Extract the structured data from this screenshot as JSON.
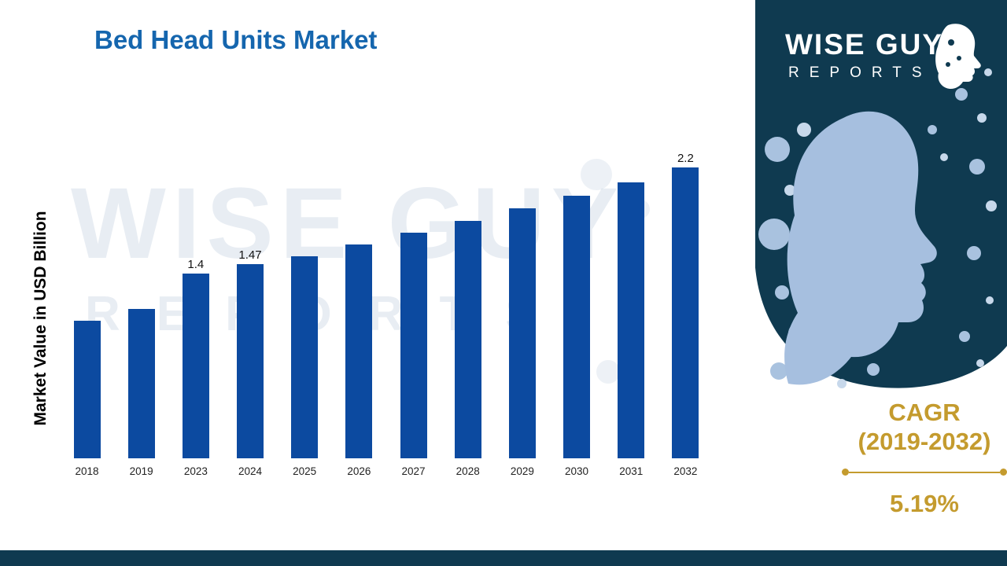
{
  "header": {
    "title": "Bed Head Units Market"
  },
  "chart_data": {
    "type": "bar",
    "categories": [
      "2018",
      "2019",
      "2023",
      "2024",
      "2025",
      "2026",
      "2027",
      "2028",
      "2029",
      "2030",
      "2031",
      "2032"
    ],
    "values": [
      1.04,
      1.13,
      1.4,
      1.47,
      1.53,
      1.62,
      1.71,
      1.8,
      1.89,
      1.99,
      2.09,
      2.2
    ],
    "data_labels": {
      "2023": "1.4",
      "2024": "1.47",
      "2032": "2.2"
    },
    "title": "Bed Head Units Market",
    "xlabel": "",
    "ylabel": "Market Value in USD Billion",
    "ylim": [
      0,
      2.4
    ],
    "grid": false,
    "legend": false,
    "bar_color": "#0c4aa0"
  },
  "watermark": {
    "line1": "WISE GUY",
    "line2": "REPORTS"
  },
  "logo": {
    "name_top": "WISE GUY",
    "name_bottom": "REPORTS"
  },
  "cagr": {
    "label": "CAGR",
    "range": "(2019-2032)",
    "value": "5.19%"
  },
  "colors": {
    "title_blue": "#1566ae",
    "bar_blue": "#0c4aa0",
    "panel_dark": "#0f3a50",
    "gold": "#c49b2e",
    "face_light_blue": "#a6bfdf",
    "dot_light_blue": "#c7d8eb"
  }
}
